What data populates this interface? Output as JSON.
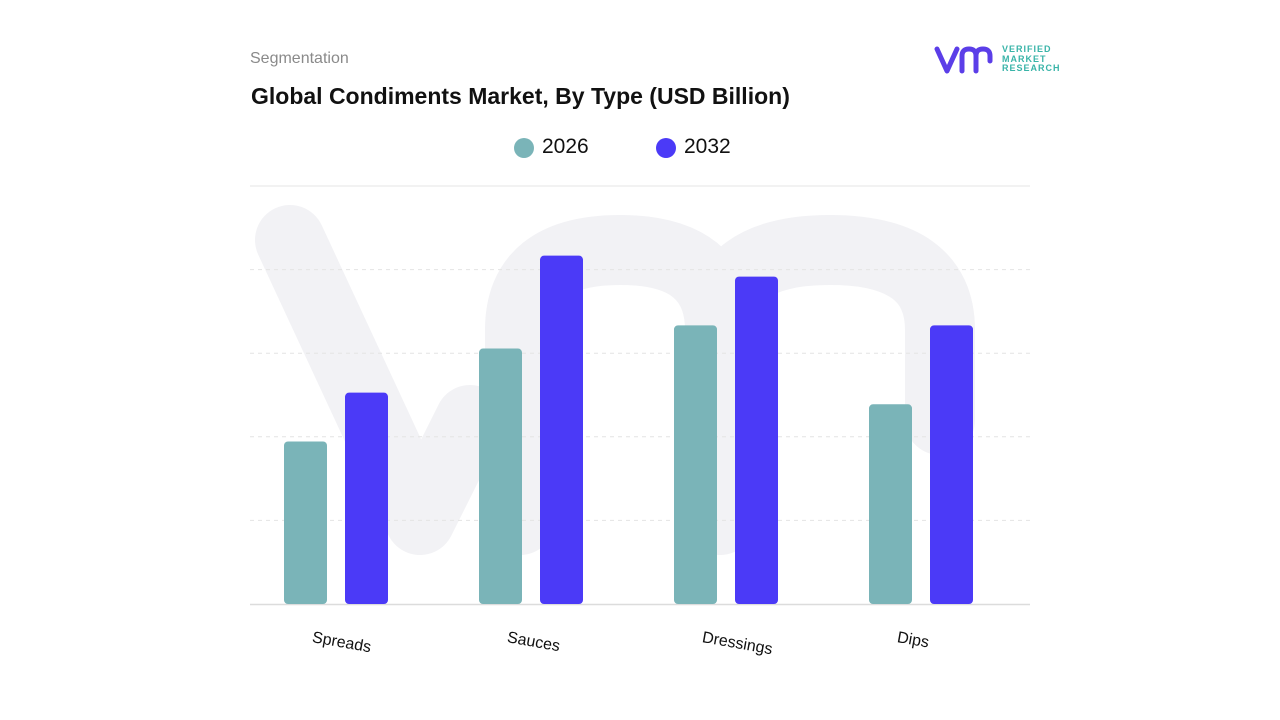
{
  "header": {
    "segment_label": "Segmentation",
    "title": "Global Condiments Market, By Type (USD Billion)"
  },
  "logo": {
    "line1": "VERIFIED",
    "line2": "MARKET",
    "line3": "RESEARCH",
    "icon": "vmr-logo-icon"
  },
  "colors": {
    "series_2026": "#7ab4b8",
    "series_2032": "#4b3af7",
    "logo_accent": "#5b3ee8",
    "logo_text": "#39b4a8",
    "grid": "#e4e4e4"
  },
  "chart_data": {
    "type": "bar",
    "title": "Global Condiments Market, By Type (USD Billion)",
    "xlabel": "",
    "ylabel": "",
    "categories": [
      "Spreads",
      "Sauces",
      "Dressings",
      "Dips"
    ],
    "series": [
      {
        "name": "2026",
        "values": [
          35,
          55,
          60,
          43
        ]
      },
      {
        "name": "2032",
        "values": [
          45.5,
          75,
          70.5,
          60
        ]
      }
    ],
    "ylim": [
      0,
      90
    ],
    "grid": true,
    "legend_position": "top-center"
  }
}
